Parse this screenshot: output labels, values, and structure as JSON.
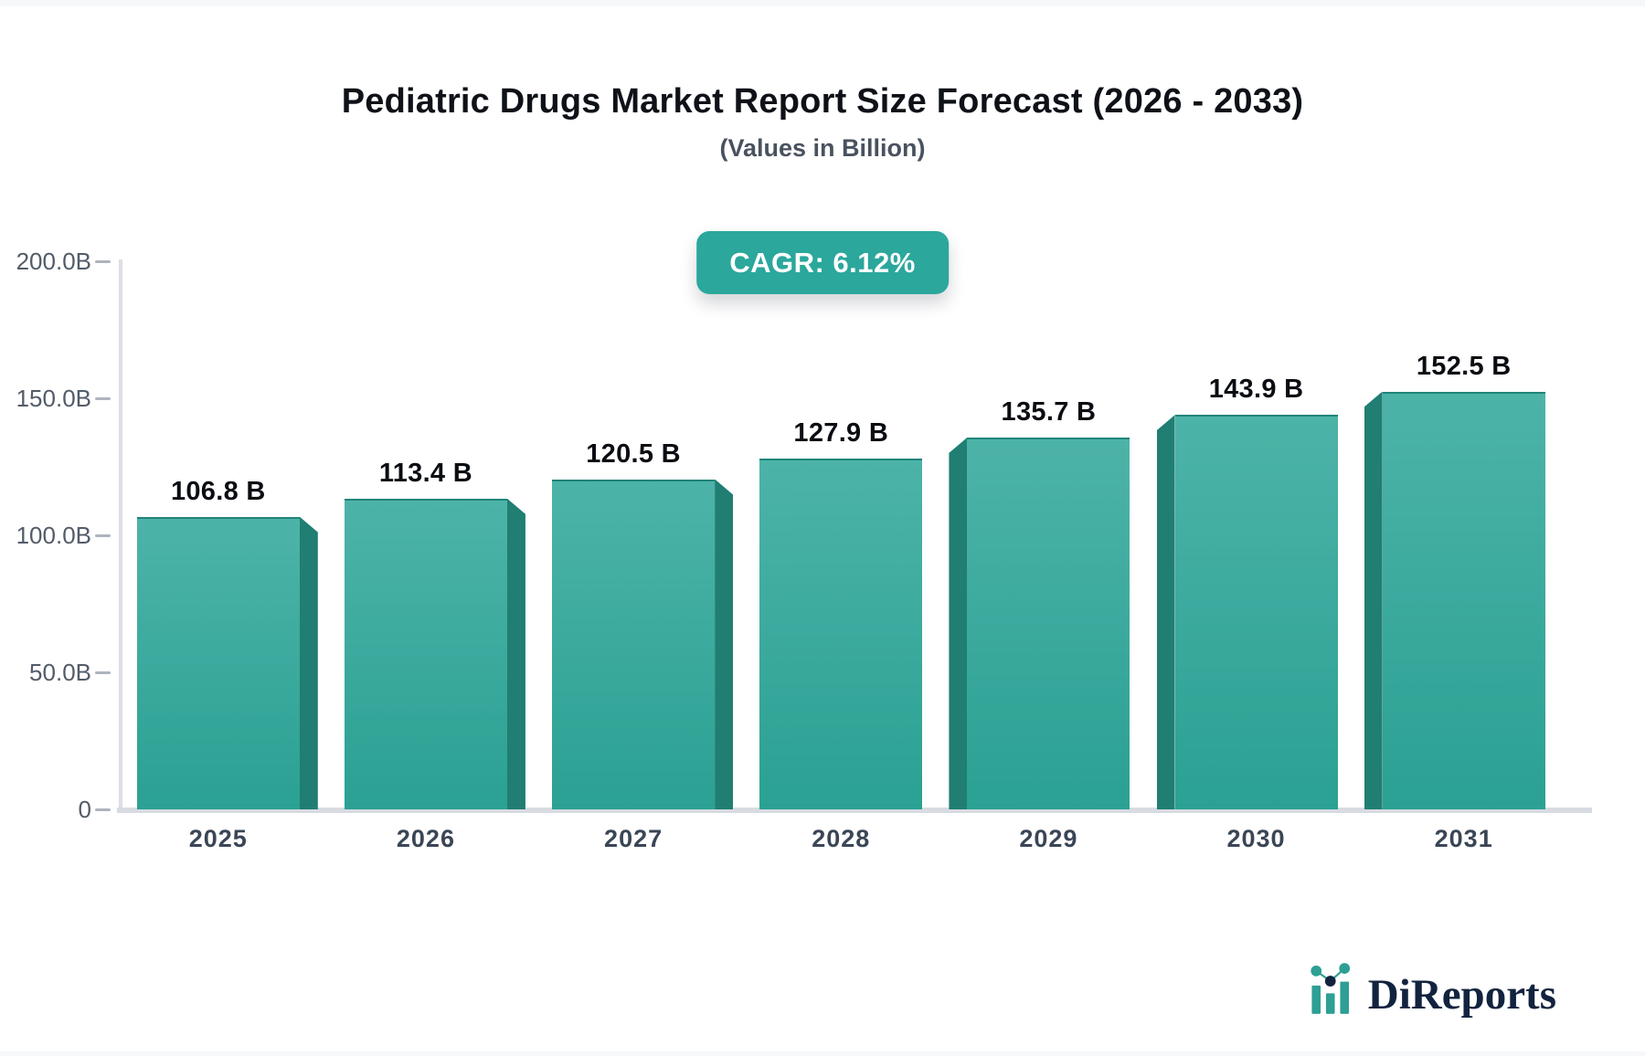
{
  "title": "Pediatric Drugs Market Report Size Forecast (2026 - 2033)",
  "subtitle": "(Values in Billion)",
  "badge": {
    "label": "CAGR: 6.12%",
    "bg_color": "#2ba79c",
    "text_color": "#ffffff"
  },
  "chart_data": {
    "type": "bar",
    "title": "Pediatric Drugs Market Report Size Forecast (2026 - 2033)",
    "subtitle": "(Values in Billion)",
    "unit": "Billion",
    "cagr": "6.12%",
    "categories": [
      "2025",
      "2026",
      "2027",
      "2028",
      "2029",
      "2030",
      "2031"
    ],
    "values": [
      106.8,
      113.4,
      120.5,
      127.9,
      135.7,
      143.9,
      152.5
    ],
    "value_labels": [
      "106.8 B",
      "113.4 B",
      "120.5 B",
      "127.9 B",
      "135.7 B",
      "143.9 B",
      "152.5 B"
    ],
    "ylim": [
      0,
      200
    ],
    "y_ticks": [
      {
        "label": "200.0B",
        "value": 200
      },
      {
        "label": "150.0B",
        "value": 150
      },
      {
        "label": "100.0B",
        "value": 100
      },
      {
        "label": "50.0B",
        "value": 50
      },
      {
        "label": "0",
        "value": 0
      }
    ],
    "grid": false,
    "legend": false,
    "bar_style": "3d-extruded-toward-center",
    "colors": {
      "bar_top": "#4db3a8",
      "bar_bottom": "#2aa193",
      "bar_side": "#207e73",
      "axis_line": "#d9dce2",
      "tick": "#aeb4bd",
      "y_label": "#525c68",
      "x_label": "#3a4656",
      "value_label": "#0a0d12"
    }
  },
  "logo": {
    "text": "DiReports",
    "color": "#12233f",
    "icon": "mini-bar-line-chart-icon",
    "icon_color": "#2d9f94"
  }
}
